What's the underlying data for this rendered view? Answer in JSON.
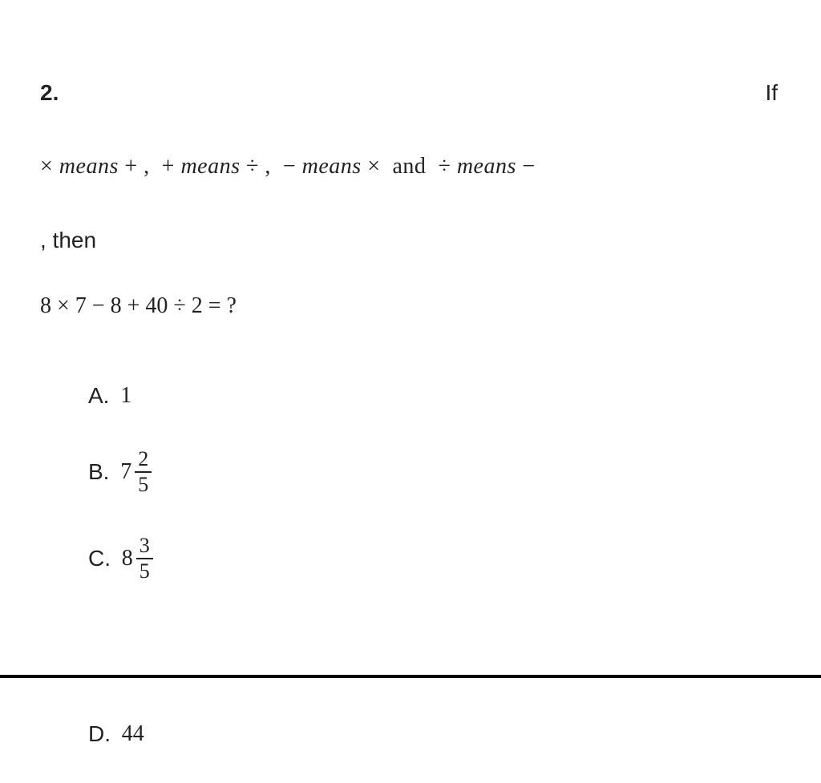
{
  "question_number": "2.",
  "if_label": "If",
  "stem_prefix_sym": "×",
  "means_word": "means",
  "plus_sym": "+",
  "div_sym": "÷",
  "minus_sym": "−",
  "times_sym": "×",
  "and_word": "and",
  "comma": ",",
  "then_label": ", then",
  "equation": "8 × 7 − 8 + 40 ÷ 2 = ?",
  "options": {
    "A": {
      "label": "A.",
      "value": "1"
    },
    "B": {
      "label": "B.",
      "whole": "7",
      "num": "2",
      "den": "5"
    },
    "C": {
      "label": "C.",
      "whole": "8",
      "num": "3",
      "den": "5"
    },
    "D": {
      "label": "D.",
      "value": "44"
    }
  },
  "colors": {
    "text": "#222222",
    "background": "#ffffff",
    "divider": "#000000"
  },
  "typography": {
    "base_font_size": 28,
    "frac_font_size": 26,
    "font_family_sans": "Arial",
    "font_family_serif": "Times New Roman"
  }
}
